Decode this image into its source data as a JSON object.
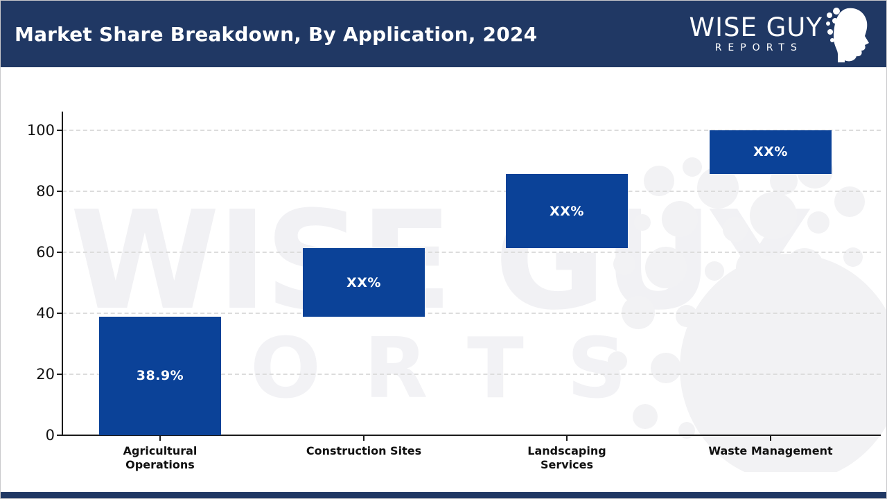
{
  "header": {
    "title": "Market Share Breakdown, By Application, 2024",
    "logo": {
      "line1": "WISE GUY",
      "line2": "REPORTS"
    }
  },
  "watermark": {
    "line1": "WISE GUY.",
    "line2": "PORTS"
  },
  "colors": {
    "header_bg": "#203864",
    "bar": "#0b4298",
    "bar_label": "#ffffff",
    "grid": "#dcdcdc",
    "axis": "#1a1a1a",
    "watermark": "#f1f1f4"
  },
  "chart_data": {
    "type": "bar",
    "subtype": "waterfall-stacked-cascade",
    "title": "Market Share Breakdown, By Application, 2024",
    "categories": [
      "Agricultural Operations",
      "Construction Sites",
      "Landscaping Services",
      "Waste Management"
    ],
    "category_label_lines": [
      [
        "Agricultural",
        "Operations"
      ],
      [
        "Construction Sites"
      ],
      [
        "Landscaping",
        "Services"
      ],
      [
        "Waste Management"
      ]
    ],
    "segments": [
      {
        "category": "Agricultural Operations",
        "start": 0,
        "end": 38.9,
        "label": "38.9%"
      },
      {
        "category": "Construction Sites",
        "start": 38.9,
        "end": 61.3,
        "label": "XX%"
      },
      {
        "category": "Landscaping Services",
        "start": 61.3,
        "end": 85.7,
        "label": "XX%"
      },
      {
        "category": "Waste Management",
        "start": 85.7,
        "end": 100,
        "label": "XX%"
      }
    ],
    "xlabel": "",
    "ylabel": "",
    "ylim": [
      0,
      100
    ],
    "yticks": [
      0,
      20,
      40,
      60,
      80,
      100
    ],
    "grid": "horizontal-dashed",
    "legend": "none",
    "bar_color": "#0b4298",
    "value_label_color": "#ffffff"
  }
}
